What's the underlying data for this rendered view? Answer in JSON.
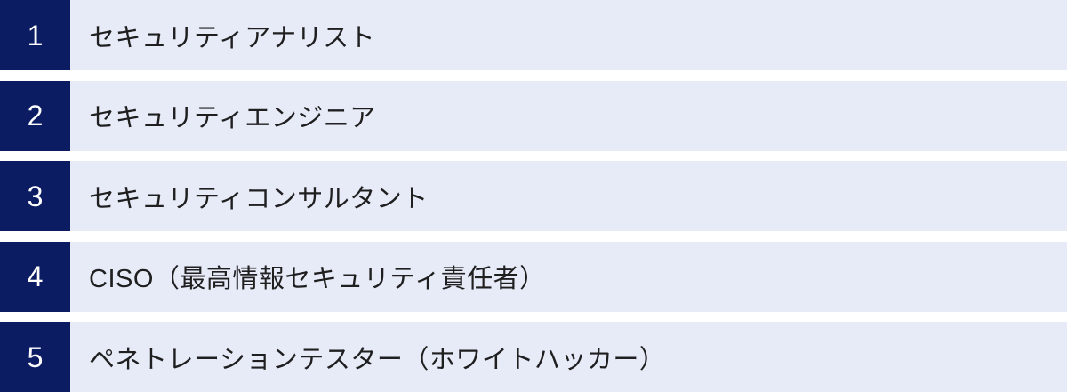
{
  "list": {
    "items": [
      {
        "number": "1",
        "label": "セキュリティアナリスト"
      },
      {
        "number": "2",
        "label": "セキュリティエンジニア"
      },
      {
        "number": "3",
        "label": "セキュリティコンサルタント"
      },
      {
        "number": "4",
        "label": "CISO（最高情報セキュリティ責任者）"
      },
      {
        "number": "5",
        "label": "ペネトレーションテスター（ホワイトハッカー）"
      }
    ],
    "colors": {
      "number_box_background": "#0b1c62",
      "number_text": "#ffffff",
      "row_background": "#e7ebf8",
      "label_text": "#1f1f1f",
      "page_background": "#ffffff"
    }
  }
}
